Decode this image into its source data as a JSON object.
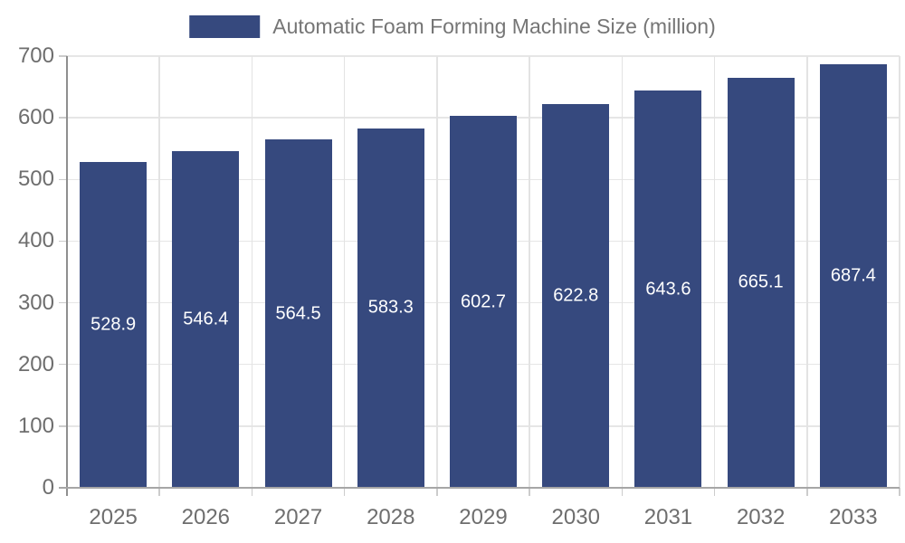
{
  "chart_data": {
    "type": "bar",
    "title": "Automatic Foam Forming Machine Size (million)",
    "categories": [
      "2025",
      "2026",
      "2027",
      "2028",
      "2029",
      "2030",
      "2031",
      "2032",
      "2033"
    ],
    "values": [
      528.9,
      546.4,
      564.5,
      583.3,
      602.7,
      622.8,
      643.6,
      665.1,
      687.4
    ],
    "value_labels": [
      "528.9",
      "546.4",
      "564.5",
      "583.3",
      "602.7",
      "622.8",
      "643.6",
      "665.1",
      "687.4"
    ],
    "ylim": [
      0,
      700
    ],
    "yticks": [
      0,
      100,
      200,
      300,
      400,
      500,
      600,
      700
    ],
    "grid": true,
    "legend_position": "top",
    "colors": {
      "bar": "#36497E",
      "bar_value_text": "#ffffff",
      "axis_text": "#6e6e6e",
      "legend_text": "#757575",
      "gridline": "#e6e6e6",
      "axis_spine": "#8f8f8f",
      "baseline": "#a6a6a6"
    }
  }
}
